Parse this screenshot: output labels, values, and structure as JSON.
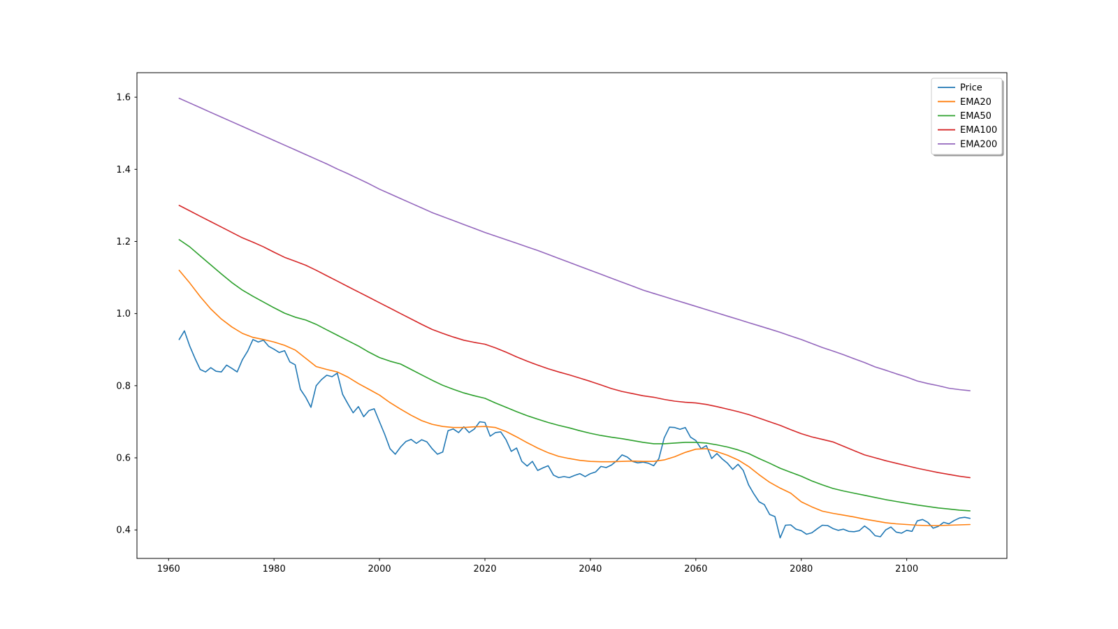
{
  "figure": {
    "background": "#ffffff"
  },
  "chart_data": {
    "type": "line",
    "title": "",
    "xlabel": "",
    "ylabel": "",
    "xlim": [
      1954,
      2119
    ],
    "ylim": [
      0.321,
      1.668
    ],
    "xticks": [
      1960,
      1980,
      2000,
      2020,
      2040,
      2060,
      2080,
      2100
    ],
    "yticks": [
      0.4,
      0.6,
      0.8,
      1.0,
      1.2,
      1.4,
      1.6
    ],
    "grid": false,
    "axis_color": "#000000",
    "legend": {
      "position": "upper-right",
      "background": "#ffffff",
      "border_color": "#cccccc",
      "shadow": true,
      "shadow_color": "#999999"
    },
    "series": [
      {
        "name": "Price",
        "color": "#1f77b4",
        "x_start": 1962,
        "x_step": 1,
        "values": [
          0.928,
          0.952,
          0.91,
          0.876,
          0.845,
          0.838,
          0.85,
          0.84,
          0.838,
          0.857,
          0.848,
          0.838,
          0.872,
          0.896,
          0.928,
          0.921,
          0.926,
          0.909,
          0.901,
          0.892,
          0.897,
          0.866,
          0.858,
          0.79,
          0.768,
          0.74,
          0.8,
          0.817,
          0.829,
          0.825,
          0.835,
          0.776,
          0.75,
          0.725,
          0.742,
          0.714,
          0.731,
          0.736,
          0.7,
          0.665,
          0.625,
          0.61,
          0.63,
          0.645,
          0.651,
          0.64,
          0.65,
          0.644,
          0.625,
          0.61,
          0.616,
          0.675,
          0.68,
          0.67,
          0.686,
          0.67,
          0.68,
          0.7,
          0.698,
          0.66,
          0.67,
          0.672,
          0.65,
          0.618,
          0.627,
          0.59,
          0.577,
          0.59,
          0.565,
          0.572,
          0.578,
          0.552,
          0.545,
          0.548,
          0.545,
          0.551,
          0.556,
          0.548,
          0.556,
          0.561,
          0.576,
          0.573,
          0.58,
          0.592,
          0.608,
          0.602,
          0.59,
          0.586,
          0.588,
          0.585,
          0.578,
          0.598,
          0.655,
          0.685,
          0.684,
          0.679,
          0.684,
          0.657,
          0.648,
          0.625,
          0.634,
          0.598,
          0.612,
          0.597,
          0.585,
          0.568,
          0.582,
          0.565,
          0.525,
          0.5,
          0.478,
          0.47,
          0.443,
          0.437,
          0.378,
          0.413,
          0.414,
          0.402,
          0.398,
          0.388,
          0.392,
          0.403,
          0.413,
          0.412,
          0.404,
          0.399,
          0.402,
          0.396,
          0.395,
          0.398,
          0.411,
          0.4,
          0.384,
          0.381,
          0.4,
          0.408,
          0.394,
          0.391,
          0.399,
          0.396,
          0.425,
          0.429,
          0.421,
          0.405,
          0.41,
          0.421,
          0.417,
          0.426,
          0.433,
          0.435,
          0.432
        ]
      },
      {
        "name": "EMA20",
        "color": "#ff7f0e",
        "x_start": 1962,
        "x_step": 2,
        "values": [
          1.12,
          1.085,
          1.047,
          1.013,
          0.985,
          0.963,
          0.945,
          0.934,
          0.928,
          0.921,
          0.912,
          0.899,
          0.876,
          0.853,
          0.845,
          0.838,
          0.824,
          0.806,
          0.79,
          0.774,
          0.753,
          0.735,
          0.718,
          0.703,
          0.693,
          0.687,
          0.684,
          0.684,
          0.686,
          0.687,
          0.684,
          0.673,
          0.658,
          0.642,
          0.627,
          0.614,
          0.604,
          0.598,
          0.593,
          0.59,
          0.589,
          0.589,
          0.59,
          0.591,
          0.59,
          0.59,
          0.594,
          0.603,
          0.615,
          0.624,
          0.625,
          0.617,
          0.607,
          0.594,
          0.576,
          0.553,
          0.532,
          0.516,
          0.502,
          0.478,
          0.464,
          0.452,
          0.446,
          0.441,
          0.436,
          0.43,
          0.425,
          0.42,
          0.417,
          0.415,
          0.413,
          0.412,
          0.412,
          0.413,
          0.414,
          0.415
        ]
      },
      {
        "name": "EMA50",
        "color": "#2ca02c",
        "x_start": 1962,
        "x_step": 2,
        "values": [
          1.205,
          1.185,
          1.16,
          1.135,
          1.11,
          1.086,
          1.065,
          1.048,
          1.032,
          1.016,
          1.001,
          0.99,
          0.982,
          0.97,
          0.955,
          0.94,
          0.925,
          0.91,
          0.893,
          0.878,
          0.868,
          0.86,
          0.845,
          0.83,
          0.815,
          0.801,
          0.79,
          0.78,
          0.772,
          0.765,
          0.752,
          0.74,
          0.728,
          0.717,
          0.707,
          0.698,
          0.69,
          0.683,
          0.675,
          0.668,
          0.662,
          0.657,
          0.653,
          0.648,
          0.643,
          0.639,
          0.639,
          0.641,
          0.643,
          0.643,
          0.641,
          0.636,
          0.63,
          0.622,
          0.612,
          0.598,
          0.585,
          0.571,
          0.56,
          0.549,
          0.536,
          0.525,
          0.515,
          0.508,
          0.502,
          0.496,
          0.49,
          0.484,
          0.479,
          0.474,
          0.469,
          0.465,
          0.461,
          0.458,
          0.455,
          0.453
        ]
      },
      {
        "name": "EMA100",
        "color": "#d62728",
        "x_start": 1962,
        "x_step": 2,
        "values": [
          1.3,
          1.285,
          1.27,
          1.255,
          1.24,
          1.225,
          1.21,
          1.198,
          1.185,
          1.17,
          1.156,
          1.145,
          1.134,
          1.12,
          1.105,
          1.09,
          1.075,
          1.06,
          1.045,
          1.03,
          1.015,
          1.0,
          0.985,
          0.97,
          0.956,
          0.945,
          0.935,
          0.926,
          0.92,
          0.915,
          0.905,
          0.893,
          0.88,
          0.868,
          0.857,
          0.847,
          0.838,
          0.83,
          0.821,
          0.812,
          0.802,
          0.792,
          0.784,
          0.778,
          0.772,
          0.768,
          0.762,
          0.757,
          0.754,
          0.752,
          0.748,
          0.742,
          0.735,
          0.728,
          0.72,
          0.71,
          0.7,
          0.69,
          0.678,
          0.667,
          0.658,
          0.651,
          0.644,
          0.632,
          0.62,
          0.608,
          0.6,
          0.592,
          0.585,
          0.578,
          0.571,
          0.565,
          0.559,
          0.554,
          0.549,
          0.545
        ]
      },
      {
        "name": "EMA200",
        "color": "#9467bd",
        "x_start": 1962,
        "x_step": 2,
        "values": [
          1.597,
          1.584,
          1.571,
          1.558,
          1.545,
          1.532,
          1.519,
          1.506,
          1.493,
          1.48,
          1.467,
          1.454,
          1.441,
          1.428,
          1.415,
          1.401,
          1.388,
          1.374,
          1.36,
          1.345,
          1.332,
          1.319,
          1.306,
          1.293,
          1.28,
          1.269,
          1.258,
          1.247,
          1.236,
          1.225,
          1.215,
          1.205,
          1.195,
          1.185,
          1.175,
          1.164,
          1.153,
          1.142,
          1.131,
          1.12,
          1.109,
          1.098,
          1.087,
          1.076,
          1.065,
          1.056,
          1.047,
          1.038,
          1.029,
          1.02,
          1.011,
          1.002,
          0.993,
          0.984,
          0.975,
          0.966,
          0.957,
          0.948,
          0.938,
          0.928,
          0.917,
          0.906,
          0.896,
          0.886,
          0.875,
          0.864,
          0.852,
          0.843,
          0.833,
          0.824,
          0.813,
          0.806,
          0.8,
          0.793,
          0.789,
          0.786
        ]
      }
    ]
  }
}
